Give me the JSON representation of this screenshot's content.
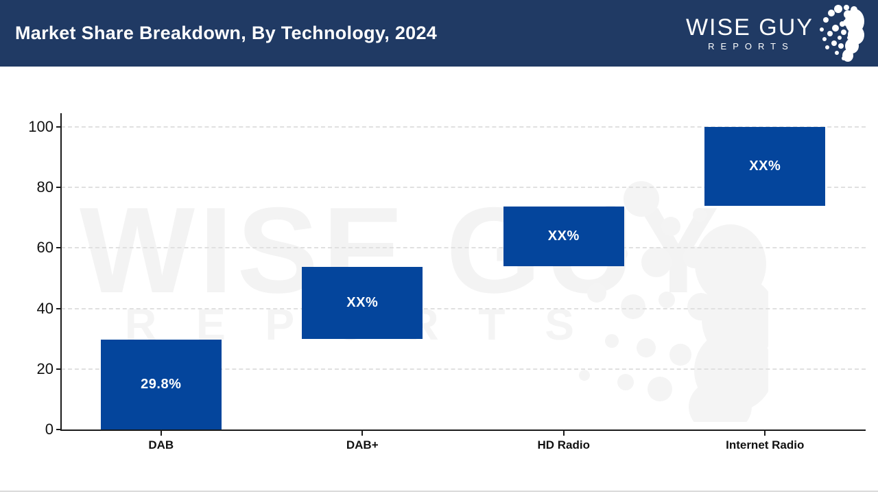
{
  "header": {
    "title": "Market Share Breakdown, By Technology, 2024",
    "brand_name": "WISE GUY",
    "brand_sub": "REPORTS",
    "background_color": "#203a64"
  },
  "watermark": {
    "line1": "WISE GUY",
    "line2": "R E P O R T S"
  },
  "chart_data": {
    "type": "waterfall",
    "title": "Market Share Breakdown, By Technology, 2024",
    "categories": [
      "DAB",
      "DAB+",
      "HD Radio",
      "Internet Radio"
    ],
    "segments": [
      {
        "category": "DAB",
        "start": 0,
        "end": 29.8,
        "label": "29.8%"
      },
      {
        "category": "DAB+",
        "start": 30,
        "end": 53.8,
        "label": "XX%"
      },
      {
        "category": "HD Radio",
        "start": 54,
        "end": 73.8,
        "label": "XX%"
      },
      {
        "category": "Internet Radio",
        "start": 74,
        "end": 100,
        "label": "XX%"
      }
    ],
    "ylim": [
      0,
      100
    ],
    "yticks": [
      0,
      20,
      40,
      60,
      80,
      100
    ],
    "grid": "horizontal dashed",
    "legend": "none",
    "bar_color": "#04459c",
    "bar_label_color": "#ffffff",
    "axis_color": "#1a1a1a",
    "gridline_color": "#e0e0e0"
  }
}
